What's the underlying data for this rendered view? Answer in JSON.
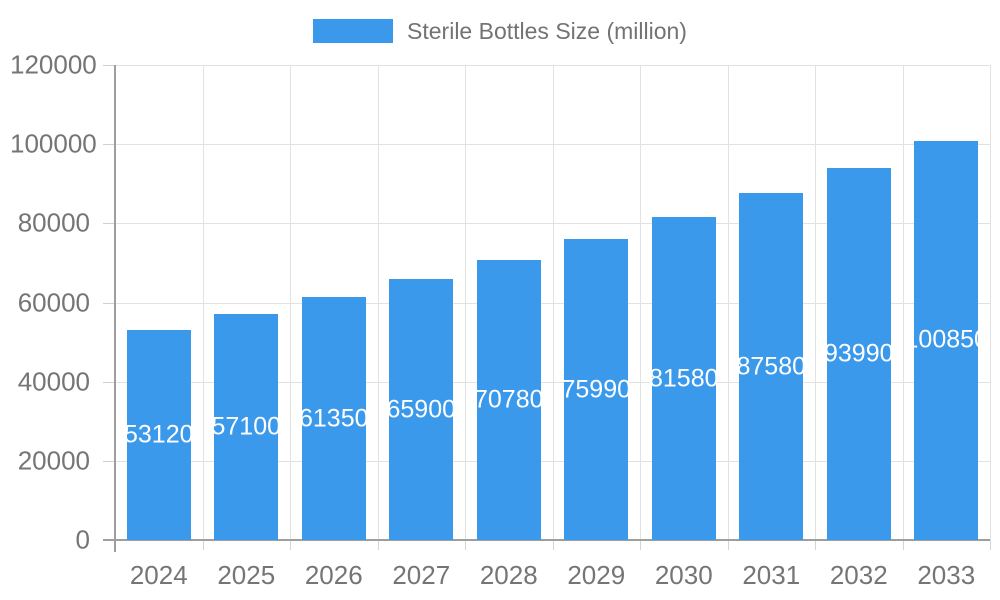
{
  "chart_data": {
    "type": "bar",
    "title": "",
    "legend": "Sterile Bottles Size (million)",
    "categories": [
      "2024",
      "2025",
      "2026",
      "2027",
      "2028",
      "2029",
      "2030",
      "2031",
      "2032",
      "2033"
    ],
    "values": [
      53120,
      57100,
      61350,
      65900,
      70780,
      75990,
      81580,
      87580,
      93990,
      100850
    ],
    "series_name": "Sterile Bottles Size (million)",
    "xlabel": "",
    "ylabel": "",
    "ylim": [
      0,
      120000
    ],
    "ytick_step": 20000,
    "ytick_labels": [
      "0",
      "20000",
      "40000",
      "60000",
      "80000",
      "100000",
      "120000"
    ],
    "grid": true,
    "legend_position": "top",
    "colors": {
      "bar": "#3b99ec",
      "bar_label": "#ffffff",
      "axis_text": "#757575",
      "legend_text": "#737373",
      "grid_line": "#e2e2e2",
      "axis_line": "#9e9e9e",
      "background": "#ffffff"
    }
  }
}
